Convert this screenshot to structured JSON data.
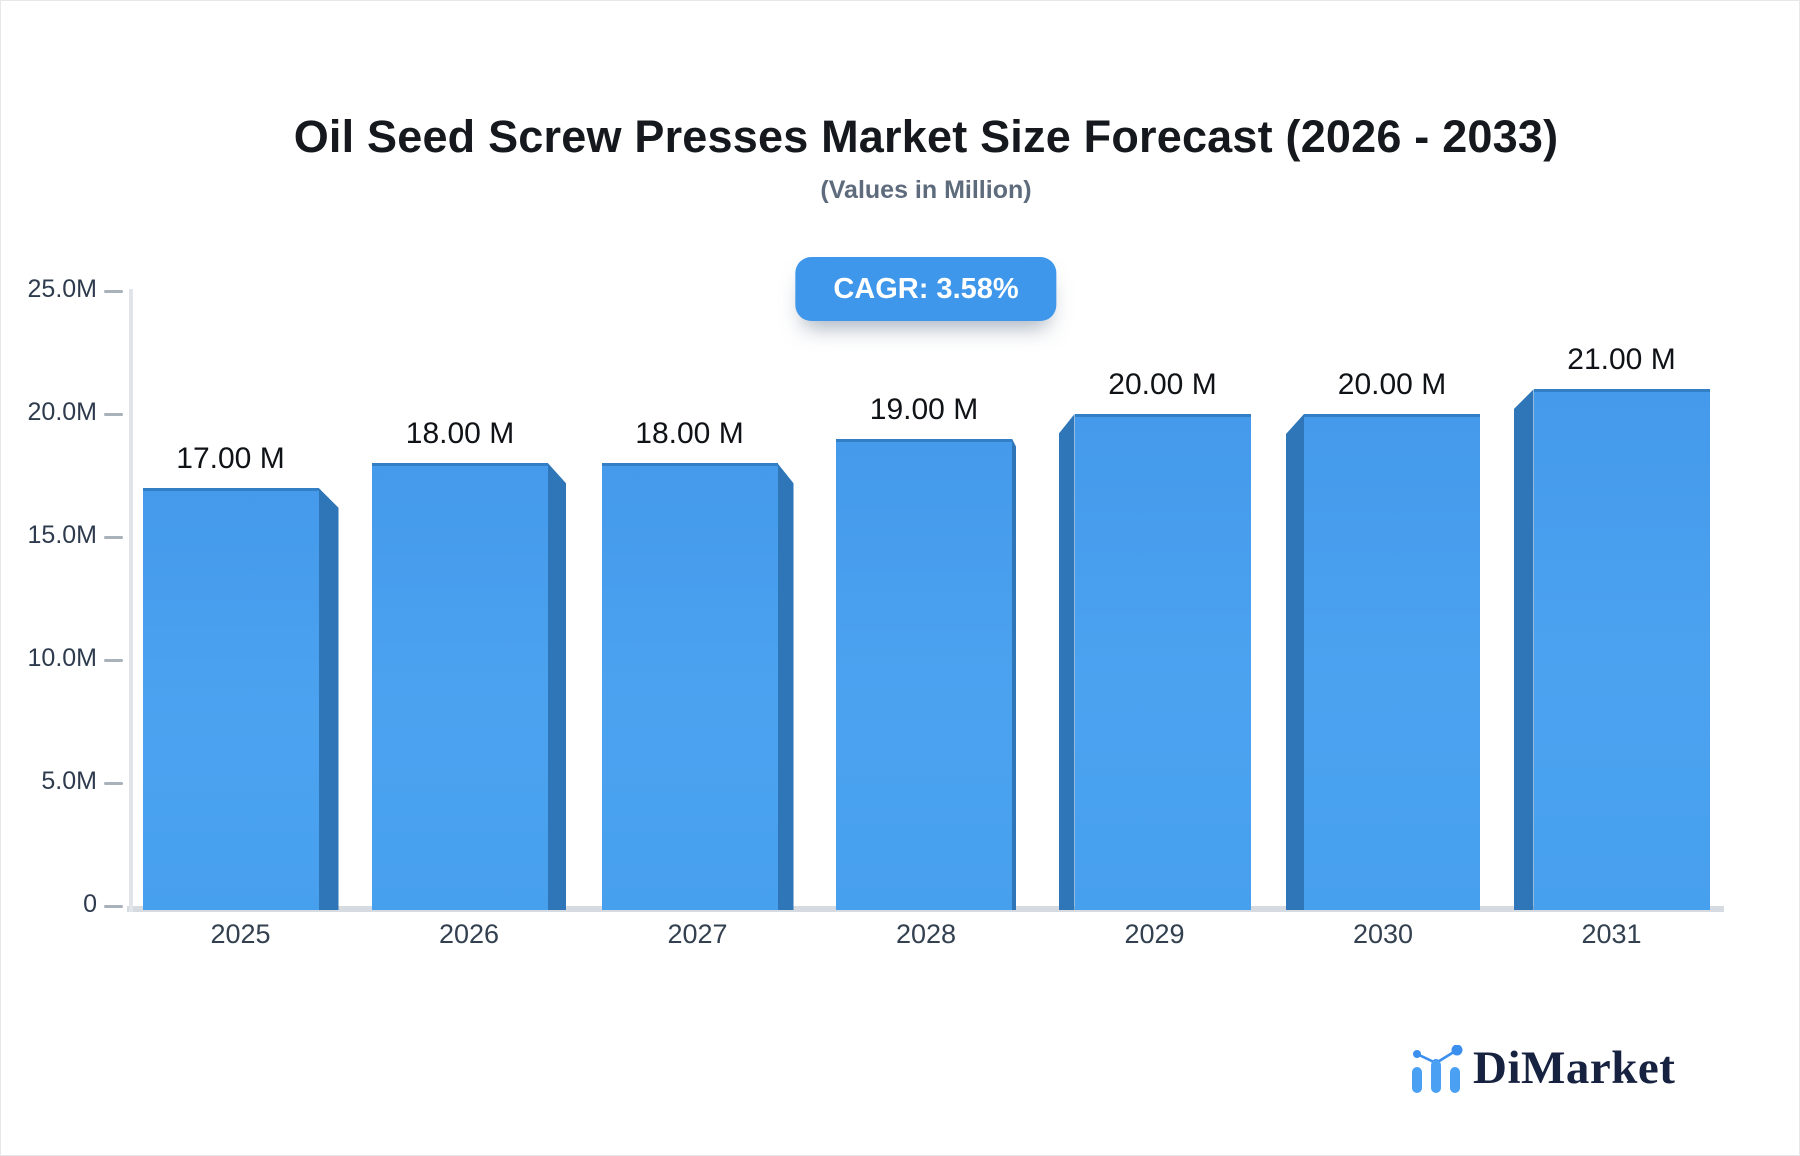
{
  "title": "Oil Seed Screw Presses Market Size Forecast (2026 - 2033)",
  "subtitle": "(Values in Million)",
  "badge": {
    "label": "CAGR: 3.58%"
  },
  "logo": {
    "name": "DiMarket"
  },
  "chart_data": {
    "type": "bar",
    "title": "Oil Seed Screw Presses Market Size Forecast (2026 - 2033)",
    "subtitle": "(Values in Million)",
    "unit": "Million",
    "categories": [
      "2025",
      "2026",
      "2027",
      "2028",
      "2029",
      "2030",
      "2031"
    ],
    "values": [
      17,
      18,
      18,
      19,
      20,
      20,
      21
    ],
    "value_labels": [
      "17.00 M",
      "18.00 M",
      "18.00 M",
      "19.00 M",
      "20.00 M",
      "20.00 M",
      "21.00 M"
    ],
    "ylim": [
      0,
      25
    ],
    "y_ticks": [
      {
        "value": 25,
        "label": "25.0M"
      },
      {
        "value": 20,
        "label": "20.0M"
      },
      {
        "value": 15,
        "label": "15.0M"
      },
      {
        "value": 10,
        "label": "10.0M"
      },
      {
        "value": 5,
        "label": "5.0M"
      },
      {
        "value": 0,
        "label": "0"
      }
    ],
    "grid": false,
    "legend": "none",
    "colors": {
      "bar": "#47A0EE",
      "bar_side": "#2E76B8",
      "badge": "#3E97EA",
      "axis": "#E1E5EA",
      "text": "#15181D"
    }
  }
}
